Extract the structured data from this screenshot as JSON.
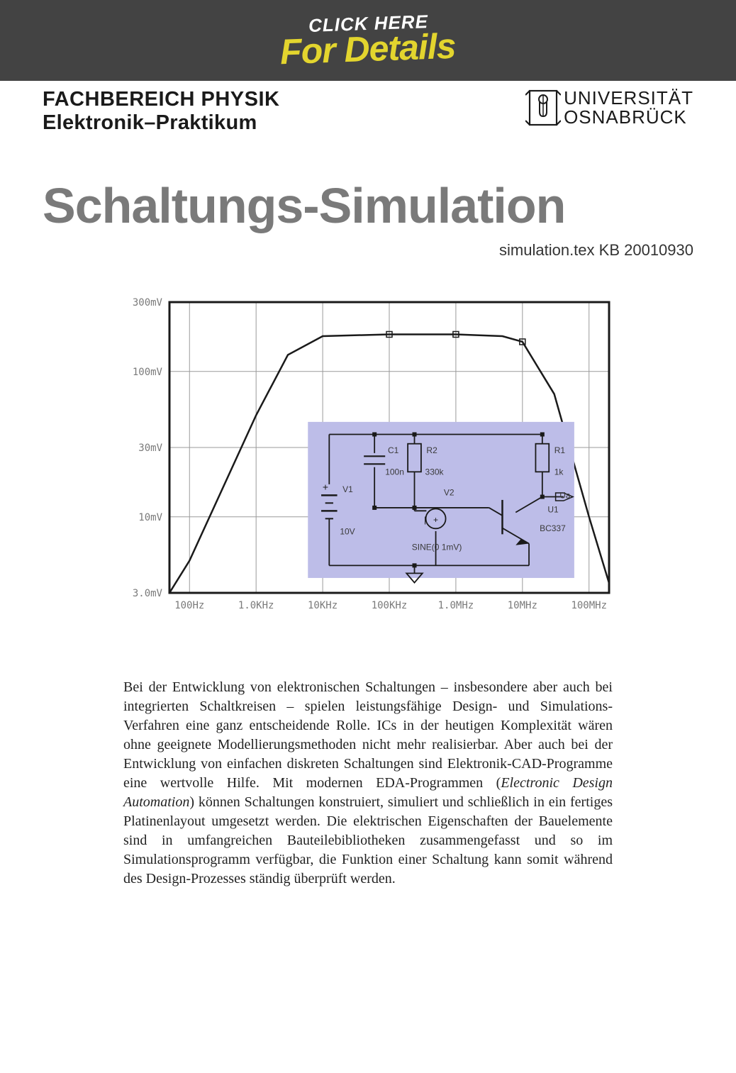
{
  "banner": {
    "line1": "CLICK HERE",
    "line2": "For Details",
    "bg_color": "#434343",
    "line1_color": "#ffffff",
    "line2_color": "#e3d52e"
  },
  "header": {
    "department": "FACHBEREICH PHYSIK",
    "course": "Elektronik–Praktikum",
    "university_line1": "UNIVERSITÄT",
    "university_line2": "OSNABRÜCK"
  },
  "title": "Schaltungs-Simulation",
  "subtitle": "simulation.tex   KB 20010930",
  "chart": {
    "type": "line",
    "x_scale": "log",
    "y_scale": "log",
    "x_label_positions": [
      "100Hz",
      "1.0KHz",
      "10KHz",
      "100KHz",
      "1.0MHz",
      "10MHz",
      "100MHz"
    ],
    "y_label_positions": [
      "300mV",
      "100mV",
      "30mV",
      "10mV",
      "3.0mV"
    ],
    "y_values_mV": [
      300,
      100,
      30,
      10,
      3.0
    ],
    "x_values_Hz": [
      100,
      1000,
      10000,
      100000,
      1000000,
      10000000,
      100000000
    ],
    "curve_points_log": [
      {
        "xhz": 50,
        "ymv": 3.0
      },
      {
        "xhz": 100,
        "ymv": 5.0
      },
      {
        "xhz": 1000,
        "ymv": 50
      },
      {
        "xhz": 3000,
        "ymv": 130
      },
      {
        "xhz": 10000,
        "ymv": 175
      },
      {
        "xhz": 100000,
        "ymv": 180
      },
      {
        "xhz": 1000000,
        "ymv": 180
      },
      {
        "xhz": 5000000,
        "ymv": 175
      },
      {
        "xhz": 10000000,
        "ymv": 160
      },
      {
        "xhz": 30000000,
        "ymv": 70
      },
      {
        "xhz": 100000000,
        "ymv": 10
      },
      {
        "xhz": 200000000,
        "ymv": 3.5
      }
    ],
    "markers_hz": [
      100000,
      1000000,
      10000000
    ],
    "line_color": "#1a1a1a",
    "line_width": 2.5,
    "grid_color": "#9a9a9a",
    "grid_width": 1,
    "border_color": "#1a1a1a",
    "border_width": 3,
    "axis_label_color": "#7a7a7a",
    "axis_label_fontsize": 14,
    "background_color": "#ffffff"
  },
  "circuit": {
    "bg_color": "#bdbde8",
    "line_color": "#1a1a1a",
    "text_color": "#3a3a3a",
    "components": {
      "V1": {
        "label": "V1",
        "value": "10V"
      },
      "C1": {
        "label": "C1",
        "value": "100n"
      },
      "R2": {
        "label": "R2",
        "value": "330k"
      },
      "R1": {
        "label": "R1",
        "value": "1k"
      },
      "V2": {
        "label": "V2",
        "value": "SINE(0 1mV)"
      },
      "U1": {
        "label": "U1",
        "value": "BC337"
      },
      "out": "Ua"
    }
  },
  "body": {
    "text": "Bei der Entwicklung von elektronischen Schaltungen – insbesondere aber auch bei integrierten Schaltkreisen – spielen leistungsfähige Design- und Simulations-Verfahren eine ganz entscheidende Rolle. ICs in der heutigen Komplexität wären ohne geeignete Modellierungsmethoden nicht mehr realisierbar. Aber auch bei der Entwicklung von einfachen diskreten Schaltungen sind Elektronik-CAD-Programme eine wertvolle Hilfe. Mit modernen EDA-Programmen (",
    "em": "Electronic Design Automation",
    "text2": ") können Schaltungen konstruiert, simuliert und schließlich in ein fertiges Platinenlayout umgesetzt werden. Die elektrischen Eigenschaften der Bauelemente sind in umfangreichen Bauteilebibliotheken zusammengefasst und so im Simulationsprogramm verfügbar, die Funktion einer Schaltung kann somit während des Design-Prozesses ständig überprüft werden."
  }
}
